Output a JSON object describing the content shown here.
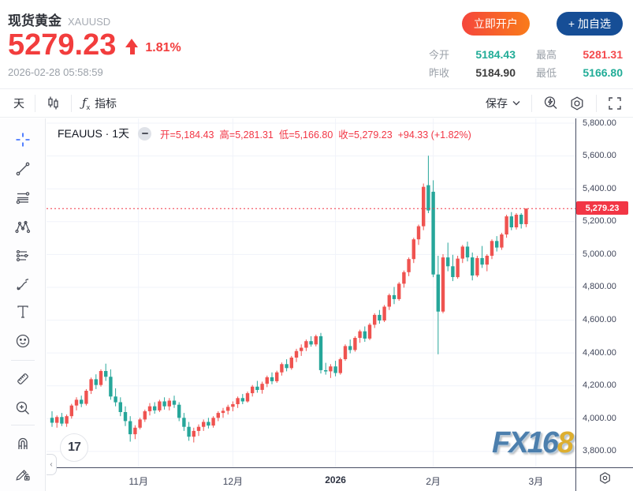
{
  "header": {
    "title": "现货黄金",
    "symbol": "XAUUSD",
    "price": "5279.23",
    "change_percent": "1.81%",
    "timestamp": "2026-02-28 05:58:59",
    "buttons": {
      "open_account": "立即开户",
      "add_watchlist": "+ 加自选"
    },
    "stats": [
      {
        "label": "今开",
        "value": "5184.43",
        "value_style": "color:#21ac97"
      },
      {
        "label": "最高",
        "value": "5281.31",
        "value_style": "color:#f4494c"
      },
      {
        "label": "昨收",
        "value": "5184.90",
        "value_style": "color:#3c3c3c"
      },
      {
        "label": "最低",
        "value": "5166.80",
        "value_style": "color:#21ac97"
      }
    ]
  },
  "toolbar": {
    "interval": "天",
    "indicators": "指标",
    "save": "保存"
  },
  "legend": {
    "series_title": "FEAUUS · 1天",
    "ohlc": "开=5,184.43  高=5,281.31  低=5,166.80  收=5,279.23  +94.33 (+1.82%)"
  },
  "watermark": {
    "tv": "17",
    "fx": "FX16",
    "eight": "8"
  },
  "sidebar_tools": [
    "crosshair",
    "trend-line",
    "fib-retracement",
    "xabcd-pattern",
    "forecast",
    "brush",
    "text",
    "emoji",
    "ruler",
    "zoom-in",
    "magnet",
    "lock-drawing"
  ],
  "chart_data": {
    "type": "candlestick",
    "symbol": "FEAUUS",
    "interval": "1天",
    "title": "现货黄金 XAUUSD 日线",
    "up_color": "#ef5350",
    "down_color": "#26a69a",
    "grid_color": "#f0f3fa",
    "current_price": 5279.23,
    "current_price_label": "5,279.23",
    "price_line_color": "#f23645",
    "y_ticks": [
      5800,
      5600,
      5400,
      5200,
      5000,
      4800,
      4600,
      4400,
      4200,
      4000,
      3800
    ],
    "y_range_top": 5828.8,
    "y_range_bottom": 3703.5,
    "x_ticks": [
      {
        "label": "11月",
        "index": 17.7,
        "bold": false
      },
      {
        "label": "12月",
        "index": 37,
        "bold": false
      },
      {
        "label": "2026",
        "index": 58,
        "bold": true
      },
      {
        "label": "2月",
        "index": 78,
        "bold": false
      },
      {
        "label": "3月",
        "index": 99,
        "bold": false
      }
    ],
    "ohlc_today": {
      "open": 5184.43,
      "high": 5281.31,
      "low": 5166.8,
      "close": 5279.23,
      "change": 94.33,
      "change_pct": 1.82
    },
    "prev_close": 5184.9,
    "candles": [
      [
        4005,
        4045,
        3950,
        3975
      ],
      [
        3975,
        4020,
        3945,
        4010
      ],
      [
        4010,
        4035,
        3955,
        3970
      ],
      [
        3970,
        4025,
        3950,
        4015
      ],
      [
        4015,
        4090,
        4000,
        4080
      ],
      [
        4080,
        4130,
        4050,
        4115
      ],
      [
        4115,
        4140,
        4070,
        4090
      ],
      [
        4090,
        4180,
        4080,
        4170
      ],
      [
        4170,
        4250,
        4150,
        4240
      ],
      [
        4240,
        4270,
        4180,
        4205
      ],
      [
        4205,
        4300,
        4195,
        4290
      ],
      [
        4290,
        4335,
        4230,
        4255
      ],
      [
        4255,
        4300,
        4115,
        4135
      ],
      [
        4135,
        4185,
        4075,
        4100
      ],
      [
        4100,
        4130,
        4015,
        4040
      ],
      [
        4040,
        4075,
        3955,
        3985
      ],
      [
        3985,
        4015,
        3860,
        3905
      ],
      [
        3905,
        3960,
        3875,
        3945
      ],
      [
        3945,
        4005,
        3935,
        3995
      ],
      [
        3995,
        4055,
        3980,
        4045
      ],
      [
        4045,
        4095,
        4020,
        4075
      ],
      [
        4075,
        4100,
        4030,
        4050
      ],
      [
        4050,
        4115,
        4040,
        4105
      ],
      [
        4105,
        4130,
        4055,
        4075
      ],
      [
        4075,
        4125,
        4050,
        4110
      ],
      [
        4110,
        4140,
        4065,
        4085
      ],
      [
        4085,
        4100,
        3985,
        4005
      ],
      [
        4005,
        4035,
        3925,
        3950
      ],
      [
        3950,
        3980,
        3865,
        3890
      ],
      [
        3890,
        3945,
        3855,
        3925
      ],
      [
        3925,
        3965,
        3895,
        3950
      ],
      [
        3950,
        3995,
        3925,
        3980
      ],
      [
        3980,
        4005,
        3940,
        3958
      ],
      [
        3958,
        4015,
        3945,
        4005
      ],
      [
        4005,
        4045,
        3985,
        4035
      ],
      [
        4035,
        4065,
        4005,
        4048
      ],
      [
        4048,
        4085,
        4025,
        4072
      ],
      [
        4072,
        4105,
        4045,
        4088
      ],
      [
        4088,
        4135,
        4065,
        4125
      ],
      [
        4125,
        4150,
        4088,
        4105
      ],
      [
        4105,
        4165,
        4098,
        4155
      ],
      [
        4155,
        4205,
        4135,
        4195
      ],
      [
        4195,
        4230,
        4158,
        4175
      ],
      [
        4175,
        4225,
        4152,
        4212
      ],
      [
        4212,
        4262,
        4192,
        4252
      ],
      [
        4252,
        4282,
        4210,
        4228
      ],
      [
        4228,
        4292,
        4218,
        4282
      ],
      [
        4282,
        4342,
        4262,
        4332
      ],
      [
        4332,
        4362,
        4288,
        4308
      ],
      [
        4308,
        4382,
        4298,
        4372
      ],
      [
        4372,
        4425,
        4345,
        4412
      ],
      [
        4412,
        4452,
        4382,
        4432
      ],
      [
        4432,
        4482,
        4412,
        4472
      ],
      [
        4472,
        4502,
        4438,
        4452
      ],
      [
        4452,
        4512,
        4440,
        4502
      ],
      [
        4502,
        4522,
        4275,
        4295
      ],
      [
        4295,
        4340,
        4268,
        4288
      ],
      [
        4288,
        4332,
        4248,
        4318
      ],
      [
        4318,
        4352,
        4258,
        4278
      ],
      [
        4278,
        4372,
        4268,
        4362
      ],
      [
        4362,
        4452,
        4352,
        4442
      ],
      [
        4442,
        4482,
        4398,
        4418
      ],
      [
        4418,
        4502,
        4408,
        4492
      ],
      [
        4492,
        4542,
        4462,
        4532
      ],
      [
        4532,
        4562,
        4468,
        4488
      ],
      [
        4488,
        4582,
        4478,
        4572
      ],
      [
        4572,
        4642,
        4552,
        4632
      ],
      [
        4632,
        4662,
        4578,
        4598
      ],
      [
        4598,
        4692,
        4588,
        4682
      ],
      [
        4682,
        4762,
        4662,
        4752
      ],
      [
        4752,
        4802,
        4698,
        4728
      ],
      [
        4728,
        4832,
        4718,
        4822
      ],
      [
        4822,
        4902,
        4798,
        4892
      ],
      [
        4892,
        4982,
        4868,
        4972
      ],
      [
        4972,
        5102,
        4948,
        5092
      ],
      [
        5092,
        5182,
        5058,
        5172
      ],
      [
        5172,
        5432,
        5148,
        5412
      ],
      [
        5422,
        5602,
        5252,
        5268
      ],
      [
        5382,
        5452,
        4862,
        4878
      ],
      [
        4878,
        4992,
        4392,
        4652
      ],
      [
        4652,
        5002,
        4642,
        4982
      ],
      [
        4982,
        5072,
        4898,
        4928
      ],
      [
        4928,
        4998,
        4838,
        4862
      ],
      [
        4862,
        4992,
        4852,
        4975
      ],
      [
        4975,
        5058,
        4948,
        5048
      ],
      [
        5048,
        5078,
        4958,
        4982
      ],
      [
        4982,
        5012,
        4842,
        4872
      ],
      [
        4872,
        4992,
        4862,
        4978
      ],
      [
        4978,
        5052,
        4918,
        4938
      ],
      [
        4938,
        5002,
        4898,
        4992
      ],
      [
        4992,
        5092,
        4972,
        5082
      ],
      [
        5082,
        5112,
        5018,
        5042
      ],
      [
        5042,
        5132,
        5028,
        5122
      ],
      [
        5122,
        5242,
        5102,
        5232
      ],
      [
        5232,
        5258,
        5148,
        5165
      ],
      [
        5165,
        5252,
        5152,
        5242
      ],
      [
        5242,
        5252,
        5158,
        5185
      ],
      [
        5184.43,
        5281.31,
        5166.8,
        5279.23
      ]
    ]
  }
}
